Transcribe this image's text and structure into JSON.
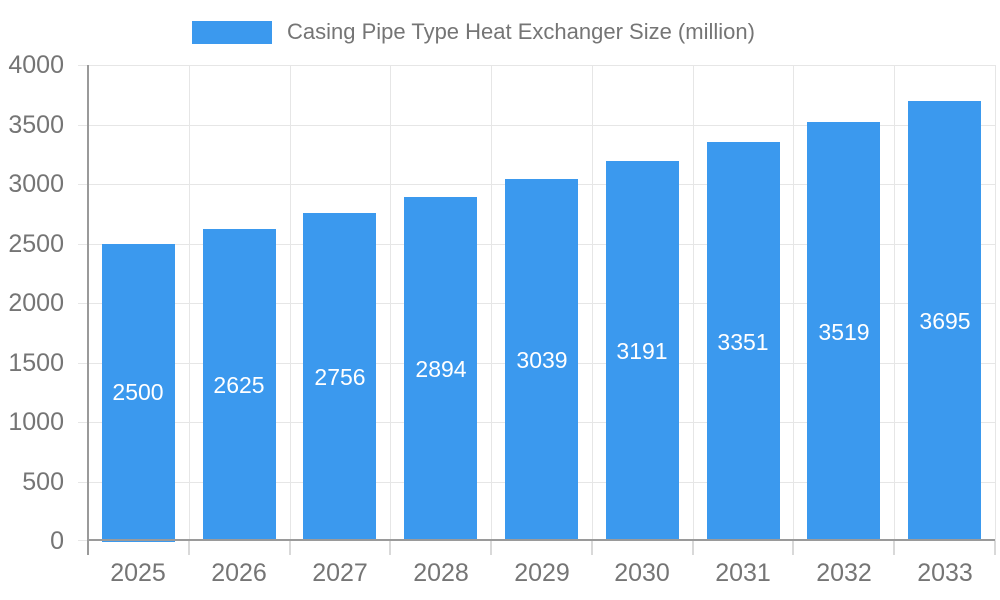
{
  "chart_data": {
    "type": "bar",
    "title": "Casing Pipe Type Heat Exchanger Size (million)",
    "legend_label": "Casing Pipe Type Heat Exchanger Size (million)",
    "legend_position": "top",
    "categories": [
      "2025",
      "2026",
      "2027",
      "2028",
      "2029",
      "2030",
      "2031",
      "2032",
      "2033"
    ],
    "series": [
      {
        "name": "Casing Pipe Type Heat Exchanger Size (million)",
        "color": "#3B99EE",
        "values": [
          2500,
          2625,
          2756,
          2894,
          3039,
          3191,
          3351,
          3519,
          3695
        ]
      }
    ],
    "value_labels": "inside-center",
    "value_label_color": "#FFFFFF",
    "xlabel": "",
    "ylabel": "",
    "ylim": [
      0,
      4000
    ],
    "yticks": [
      0,
      500,
      1000,
      1500,
      2000,
      2500,
      3000,
      3500,
      4000
    ],
    "grid": true,
    "grid_color": "#E6E6E6",
    "axis_line_color": "#9A9A9A",
    "tick_color": "#D9D9D9",
    "text_color": "#757575",
    "background": "#FFFFFF"
  }
}
